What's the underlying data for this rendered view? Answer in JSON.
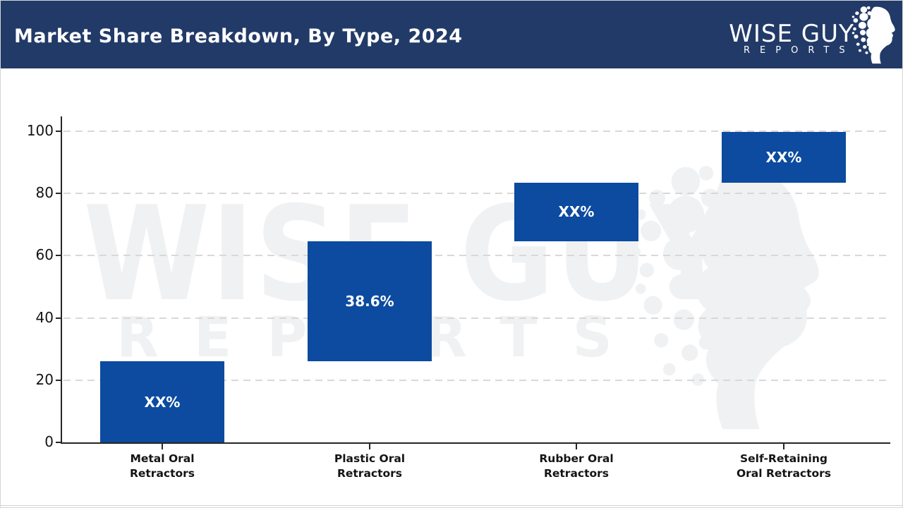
{
  "header": {
    "title": "Market Share Breakdown, By Type, 2024",
    "logo": {
      "line1": "WISE GUY",
      "line2": "REPORTS"
    }
  },
  "watermark": {
    "line1": "WISE GUY",
    "line2": "REPORTS"
  },
  "chart_data": {
    "type": "bar",
    "variant": "floating-segment (waterfall-style market share breakdown)",
    "title": "Market Share Breakdown, By Type, 2024",
    "xlabel": "",
    "ylabel": "",
    "ylim": [
      0,
      105
    ],
    "grid": "dashed horizontal gridlines at y ticks",
    "y_axis": {
      "ticks": [
        0,
        20,
        40,
        60,
        80,
        100
      ]
    },
    "categories": [
      {
        "label": "Metal Oral Retractors",
        "line1": "Metal Oral",
        "line2": "Retractors"
      },
      {
        "label": "Plastic Oral Retractors",
        "line1": "Plastic Oral",
        "line2": "Retractors"
      },
      {
        "label": "Rubber Oral Retractors",
        "line1": "Rubber Oral",
        "line2": "Retractors"
      },
      {
        "label": "Self-Retaining Oral Retractors",
        "line1": "Self-Retaining",
        "line2": "Oral Retractors"
      }
    ],
    "segments": [
      {
        "category": "Metal Oral Retractors",
        "start": 0,
        "end": 26,
        "label": "XX%"
      },
      {
        "category": "Plastic Oral Retractors",
        "start": 26,
        "end": 64.6,
        "label": "38.6%"
      },
      {
        "category": "Rubber Oral Retractors",
        "start": 64.6,
        "end": 83.5,
        "label": "XX%"
      },
      {
        "category": "Self-Retaining Oral Retractors",
        "start": 83.5,
        "end": 99.8,
        "label": "XX%"
      }
    ],
    "colors": {
      "bar": "#0c4b9f",
      "header_bg": "#223a68",
      "gridline": "#d8d8d8",
      "axis": "#262626",
      "text": "#141414",
      "bar_label": "#ffffff",
      "watermark": "#f0f1f3"
    }
  }
}
